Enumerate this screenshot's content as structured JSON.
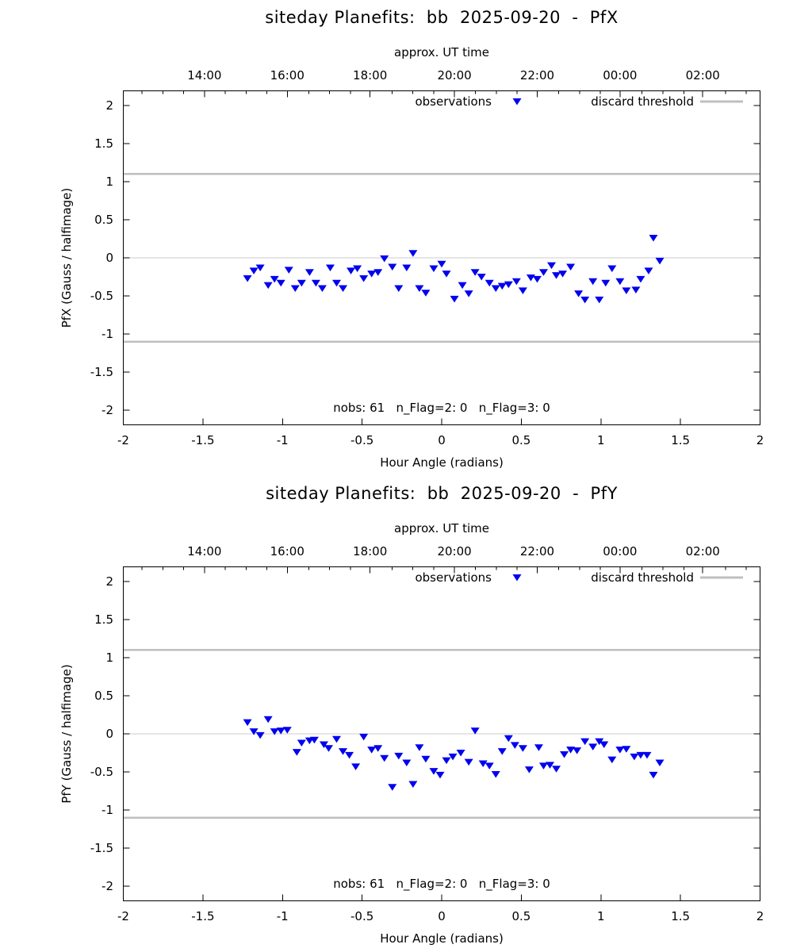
{
  "chart_data": [
    {
      "type": "scatter",
      "title": "siteday Planefits:  bb  2025-09-20  -  PfX",
      "x_axis": {
        "label": "Hour Angle (radians)",
        "range": [
          -2,
          2
        ],
        "ticks": [
          {
            "v": -2,
            "label": "-2"
          },
          {
            "v": -1.5,
            "label": "-1.5"
          },
          {
            "v": -1,
            "label": "-1"
          },
          {
            "v": -0.5,
            "label": "-0.5"
          },
          {
            "v": 0,
            "label": "0"
          },
          {
            "v": 0.5,
            "label": "0.5"
          },
          {
            "v": 1,
            "label": "1"
          },
          {
            "v": 1.5,
            "label": "1.5"
          },
          {
            "v": 2,
            "label": "2"
          }
        ]
      },
      "y_axis": {
        "label": "PfX (Gauss / halfimage)",
        "range": [
          -2.19,
          2.19
        ],
        "ticks": [
          {
            "v": 2,
            "label": "2"
          },
          {
            "v": 1.5,
            "label": "1.5"
          },
          {
            "v": 1,
            "label": "1"
          },
          {
            "v": 0.5,
            "label": "0.5"
          },
          {
            "v": 0,
            "label": "0"
          },
          {
            "v": -0.5,
            "label": "-0.5"
          },
          {
            "v": -1,
            "label": "-1"
          },
          {
            "v": -1.5,
            "label": "-1.5"
          },
          {
            "v": -2,
            "label": "-2"
          }
        ]
      },
      "x2_axis": {
        "title": "approx. UT time",
        "minor_step": 0.1309,
        "ticks": [
          {
            "ha": -1.49,
            "label": "14:00"
          },
          {
            "ha": -0.97,
            "label": "16:00"
          },
          {
            "ha": -0.45,
            "label": "18:00"
          },
          {
            "ha": 0.08,
            "label": "20:00"
          },
          {
            "ha": 0.6,
            "label": "22:00"
          },
          {
            "ha": 1.12,
            "label": "00:00"
          },
          {
            "ha": 1.64,
            "label": "02:00"
          }
        ]
      },
      "legend": [
        {
          "label": "observations",
          "sample": "triangle-down"
        },
        {
          "label": "discard threshold",
          "sample": "line"
        }
      ],
      "thresholds": [
        1.1,
        -1.1
      ],
      "zero_line": 0,
      "grid": false,
      "legend_position": "top-inside",
      "stats_text": "nobs: 61   n_Flag=2: 0   n_Flag=3: 0",
      "nobs": 61,
      "colors": {
        "marker": "#0000ee",
        "threshold": "#bfbfbf",
        "zero_line": "#cccccc",
        "text": "#000000"
      },
      "points": [
        [
          -1.22,
          -0.27
        ],
        [
          -1.18,
          -0.17
        ],
        [
          -1.14,
          -0.13
        ],
        [
          -1.09,
          -0.36
        ],
        [
          -1.05,
          -0.28
        ],
        [
          -1.01,
          -0.33
        ],
        [
          -0.96,
          -0.16
        ],
        [
          -0.92,
          -0.4
        ],
        [
          -0.88,
          -0.33
        ],
        [
          -0.83,
          -0.19
        ],
        [
          -0.79,
          -0.33
        ],
        [
          -0.75,
          -0.4
        ],
        [
          -0.7,
          -0.13
        ],
        [
          -0.66,
          -0.33
        ],
        [
          -0.62,
          -0.4
        ],
        [
          -0.57,
          -0.17
        ],
        [
          -0.53,
          -0.14
        ],
        [
          -0.49,
          -0.27
        ],
        [
          -0.44,
          -0.21
        ],
        [
          -0.4,
          -0.19
        ],
        [
          -0.36,
          -0.01
        ],
        [
          -0.31,
          -0.12
        ],
        [
          -0.27,
          -0.4
        ],
        [
          -0.22,
          -0.13
        ],
        [
          -0.18,
          0.06
        ],
        [
          -0.14,
          -0.4
        ],
        [
          -0.1,
          -0.46
        ],
        [
          -0.05,
          -0.14
        ],
        [
          0.0,
          -0.08
        ],
        [
          0.03,
          -0.21
        ],
        [
          0.08,
          -0.54
        ],
        [
          0.13,
          -0.36
        ],
        [
          0.17,
          -0.47
        ],
        [
          0.21,
          -0.19
        ],
        [
          0.25,
          -0.25
        ],
        [
          0.3,
          -0.33
        ],
        [
          0.34,
          -0.4
        ],
        [
          0.38,
          -0.37
        ],
        [
          0.42,
          -0.35
        ],
        [
          0.47,
          -0.31
        ],
        [
          0.51,
          -0.43
        ],
        [
          0.56,
          -0.26
        ],
        [
          0.6,
          -0.28
        ],
        [
          0.64,
          -0.19
        ],
        [
          0.69,
          -0.1
        ],
        [
          0.72,
          -0.23
        ],
        [
          0.76,
          -0.21
        ],
        [
          0.81,
          -0.12
        ],
        [
          0.86,
          -0.47
        ],
        [
          0.9,
          -0.55
        ],
        [
          0.95,
          -0.31
        ],
        [
          0.99,
          -0.55
        ],
        [
          1.03,
          -0.33
        ],
        [
          1.07,
          -0.14
        ],
        [
          1.12,
          -0.31
        ],
        [
          1.16,
          -0.43
        ],
        [
          1.22,
          -0.42
        ],
        [
          1.25,
          -0.28
        ],
        [
          1.3,
          -0.17
        ],
        [
          1.33,
          0.26
        ],
        [
          1.37,
          -0.04
        ]
      ]
    },
    {
      "type": "scatter",
      "title": "siteday Planefits:  bb  2025-09-20  -  PfY",
      "x_axis": {
        "label": "Hour Angle (radians)",
        "range": [
          -2,
          2
        ],
        "ticks": [
          {
            "v": -2,
            "label": "-2"
          },
          {
            "v": -1.5,
            "label": "-1.5"
          },
          {
            "v": -1,
            "label": "-1"
          },
          {
            "v": -0.5,
            "label": "-0.5"
          },
          {
            "v": 0,
            "label": "0"
          },
          {
            "v": 0.5,
            "label": "0.5"
          },
          {
            "v": 1,
            "label": "1"
          },
          {
            "v": 1.5,
            "label": "1.5"
          },
          {
            "v": 2,
            "label": "2"
          }
        ]
      },
      "y_axis": {
        "label": "PfY (Gauss / halfimage)",
        "range": [
          -2.19,
          2.19
        ],
        "ticks": [
          {
            "v": 2,
            "label": "2"
          },
          {
            "v": 1.5,
            "label": "1.5"
          },
          {
            "v": 1,
            "label": "1"
          },
          {
            "v": 0.5,
            "label": "0.5"
          },
          {
            "v": 0,
            "label": "0"
          },
          {
            "v": -0.5,
            "label": "-0.5"
          },
          {
            "v": -1,
            "label": "-1"
          },
          {
            "v": -1.5,
            "label": "-1.5"
          },
          {
            "v": -2,
            "label": "-2"
          }
        ]
      },
      "x2_axis": {
        "title": "approx. UT time",
        "minor_step": 0.1309,
        "ticks": [
          {
            "ha": -1.49,
            "label": "14:00"
          },
          {
            "ha": -0.97,
            "label": "16:00"
          },
          {
            "ha": -0.45,
            "label": "18:00"
          },
          {
            "ha": 0.08,
            "label": "20:00"
          },
          {
            "ha": 0.6,
            "label": "22:00"
          },
          {
            "ha": 1.12,
            "label": "00:00"
          },
          {
            "ha": 1.64,
            "label": "02:00"
          }
        ]
      },
      "legend": [
        {
          "label": "observations",
          "sample": "triangle-down"
        },
        {
          "label": "discard threshold",
          "sample": "line"
        }
      ],
      "thresholds": [
        1.1,
        -1.1
      ],
      "zero_line": 0,
      "grid": false,
      "legend_position": "top-inside",
      "stats_text": "nobs: 61   n_Flag=2: 0   n_Flag=3: 0",
      "nobs": 61,
      "colors": {
        "marker": "#0000ee",
        "threshold": "#bfbfbf",
        "zero_line": "#cccccc",
        "text": "#000000"
      },
      "points": [
        [
          -1.22,
          0.15
        ],
        [
          -1.18,
          0.03
        ],
        [
          -1.14,
          -0.02
        ],
        [
          -1.09,
          0.19
        ],
        [
          -1.05,
          0.03
        ],
        [
          -1.01,
          0.04
        ],
        [
          -0.97,
          0.05
        ],
        [
          -0.91,
          -0.24
        ],
        [
          -0.88,
          -0.12
        ],
        [
          -0.83,
          -0.09
        ],
        [
          -0.8,
          -0.08
        ],
        [
          -0.74,
          -0.14
        ],
        [
          -0.71,
          -0.19
        ],
        [
          -0.66,
          -0.07
        ],
        [
          -0.62,
          -0.23
        ],
        [
          -0.58,
          -0.28
        ],
        [
          -0.54,
          -0.43
        ],
        [
          -0.49,
          -0.04
        ],
        [
          -0.44,
          -0.21
        ],
        [
          -0.4,
          -0.19
        ],
        [
          -0.36,
          -0.32
        ],
        [
          -0.31,
          -0.7
        ],
        [
          -0.27,
          -0.29
        ],
        [
          -0.22,
          -0.38
        ],
        [
          -0.18,
          -0.66
        ],
        [
          -0.14,
          -0.18
        ],
        [
          -0.1,
          -0.33
        ],
        [
          -0.05,
          -0.49
        ],
        [
          -0.01,
          -0.54
        ],
        [
          0.03,
          -0.35
        ],
        [
          0.07,
          -0.3
        ],
        [
          0.12,
          -0.25
        ],
        [
          0.17,
          -0.37
        ],
        [
          0.21,
          0.04
        ],
        [
          0.26,
          -0.39
        ],
        [
          0.3,
          -0.42
        ],
        [
          0.34,
          -0.53
        ],
        [
          0.38,
          -0.23
        ],
        [
          0.42,
          -0.06
        ],
        [
          0.46,
          -0.15
        ],
        [
          0.51,
          -0.19
        ],
        [
          0.55,
          -0.47
        ],
        [
          0.61,
          -0.18
        ],
        [
          0.64,
          -0.42
        ],
        [
          0.68,
          -0.41
        ],
        [
          0.72,
          -0.46
        ],
        [
          0.77,
          -0.27
        ],
        [
          0.81,
          -0.21
        ],
        [
          0.85,
          -0.22
        ],
        [
          0.9,
          -0.1
        ],
        [
          0.95,
          -0.17
        ],
        [
          0.99,
          -0.1
        ],
        [
          1.02,
          -0.14
        ],
        [
          1.07,
          -0.34
        ],
        [
          1.12,
          -0.21
        ],
        [
          1.16,
          -0.2
        ],
        [
          1.21,
          -0.3
        ],
        [
          1.25,
          -0.28
        ],
        [
          1.29,
          -0.28
        ],
        [
          1.33,
          -0.54
        ],
        [
          1.37,
          -0.38
        ]
      ]
    }
  ]
}
